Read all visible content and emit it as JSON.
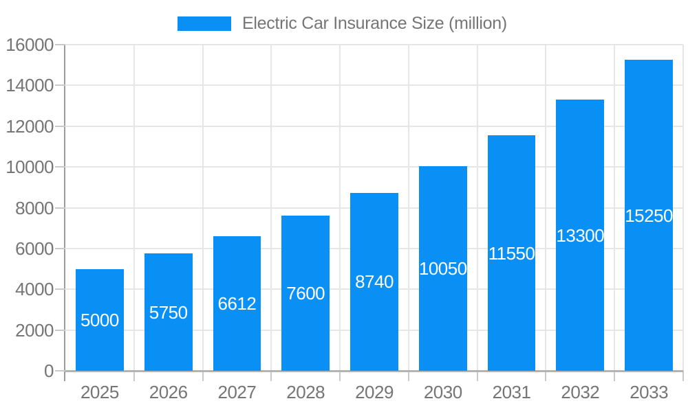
{
  "chart_data": {
    "type": "bar",
    "title": "Electric Car Insurance Size (million)",
    "legend": {
      "position": "top",
      "items": [
        {
          "label": "Electric Car Insurance Size (million)",
          "color": "#0a90f5"
        }
      ]
    },
    "categories": [
      "2025",
      "2026",
      "2027",
      "2028",
      "2029",
      "2030",
      "2031",
      "2032",
      "2033"
    ],
    "values": [
      5000,
      5750,
      6612,
      7600,
      8740,
      10050,
      11550,
      13300,
      15250
    ],
    "bar_labels": [
      "5000",
      "5750",
      "6612",
      "7600",
      "8740",
      "10050",
      "11550",
      "13300",
      "15250"
    ],
    "xlabel": "",
    "ylabel": "",
    "ylim": [
      0,
      16000
    ],
    "ytick_step": 2000,
    "ytick_labels": [
      "0",
      "2000",
      "4000",
      "6000",
      "8000",
      "10000",
      "12000",
      "14000",
      "16000"
    ],
    "grid": true,
    "bar_label_position": "inside-center",
    "colors": {
      "bar": "#0a90f5",
      "bar_label_text": "#ffffff",
      "grid_line": "#e6e6e6",
      "axis_line": "#9b9b9b",
      "baseline": "#b3b3b3",
      "tick_mark": "#c9c9c9",
      "tick_text": "#757575",
      "background": "#ffffff"
    }
  }
}
